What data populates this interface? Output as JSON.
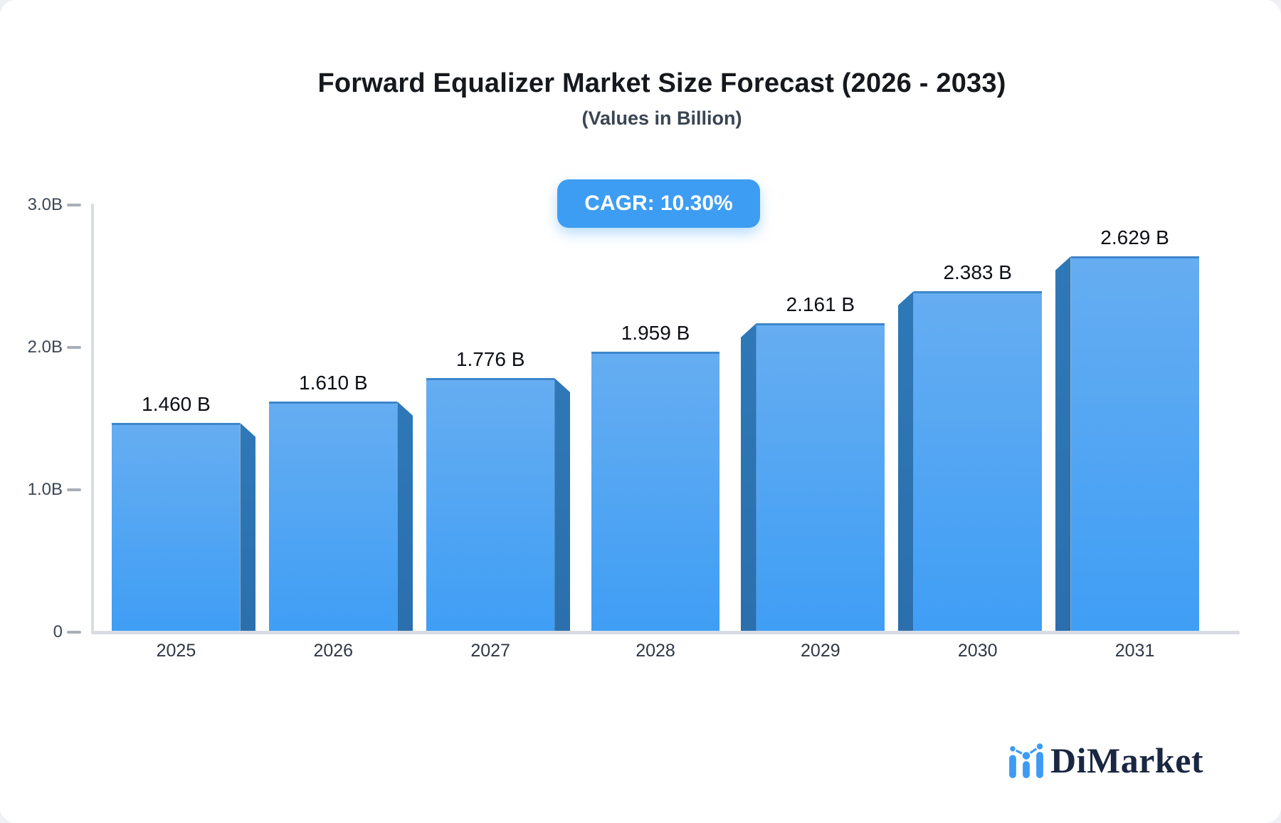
{
  "title": "Forward Equalizer Market Size Forecast (2026 - 2033)",
  "subtitle": "(Values in Billion)",
  "cagr_badge": "CAGR: 10.30%",
  "brand": {
    "name": "DiMarket",
    "icon": "bar-line-chart-icon",
    "text_color": "#1a2742",
    "icon_color": "#3d9bf5"
  },
  "chart_data": {
    "type": "bar",
    "title": "Forward Equalizer Market Size Forecast (2026 - 2033)",
    "subtitle": "(Values in Billion)",
    "annotation": "CAGR: 10.30%",
    "categories": [
      "2025",
      "2026",
      "2027",
      "2028",
      "2029",
      "2030",
      "2031"
    ],
    "values": [
      1.46,
      1.61,
      1.776,
      1.959,
      2.161,
      2.383,
      2.629
    ],
    "value_labels": [
      "1.460 B",
      "1.610 B",
      "1.776 B",
      "1.959 B",
      "2.161 B",
      "2.383 B",
      "2.629 B"
    ],
    "xlabel": "",
    "ylabel": "",
    "ylim": [
      0,
      3.0
    ],
    "y_ticks": [
      {
        "label": "3.0B",
        "value": 3.0
      },
      {
        "label": "2.0B",
        "value": 2.0
      },
      {
        "label": "1.0B",
        "value": 1.0
      },
      {
        "label": "0",
        "value": 0.0
      }
    ],
    "grid": false,
    "legend": "none",
    "colors": {
      "bar_top": "#66adf1",
      "bar_bottom": "#3f9ef5",
      "bar_top_edge": "#3e86ca",
      "bar_side_dark": "#2f78b8",
      "bar_side_dark_bottom": "#2b6fad",
      "badge_bg": "#3d9df3",
      "axis_line": "#d9dce1",
      "tick_dash": "#a8afb8",
      "value_label": "#0c0f14",
      "tick_label": "#3c4654",
      "year_label": "#2f3845"
    }
  }
}
